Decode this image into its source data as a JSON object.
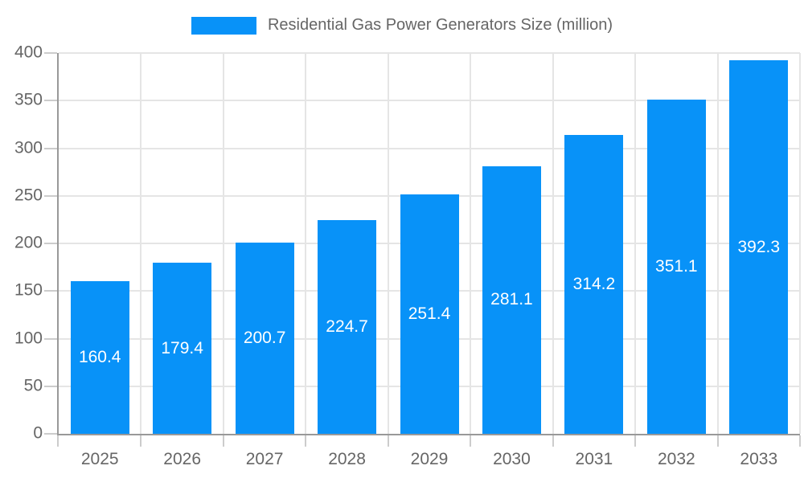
{
  "chart_data": {
    "type": "bar",
    "title": "Residential Gas Power Generators Size (million)",
    "categories": [
      "2025",
      "2026",
      "2027",
      "2028",
      "2029",
      "2030",
      "2031",
      "2032",
      "2033"
    ],
    "values": [
      160.4,
      179.4,
      200.7,
      224.7,
      251.4,
      281.1,
      314.2,
      351.1,
      392.3
    ],
    "series_name": "Residential Gas Power Generators Size (million)",
    "xlabel": "",
    "ylabel": "",
    "ylim": [
      0,
      400
    ],
    "y_ticks": [
      0,
      50,
      100,
      150,
      200,
      250,
      300,
      350,
      400
    ],
    "grid": true,
    "legend_position": "top",
    "value_labels": "centered-inside-bars"
  },
  "legend": {
    "label": "Residential Gas Power Generators Size (million)"
  },
  "style": {
    "bar_color": "#0892F8",
    "axis_color": "#999999",
    "grid_color": "#E5E5E5",
    "tick_color": "#CCCCCC",
    "text_color": "#666666",
    "value_label_color": "#FFFFFF",
    "background_color": "#FFFFFF"
  }
}
